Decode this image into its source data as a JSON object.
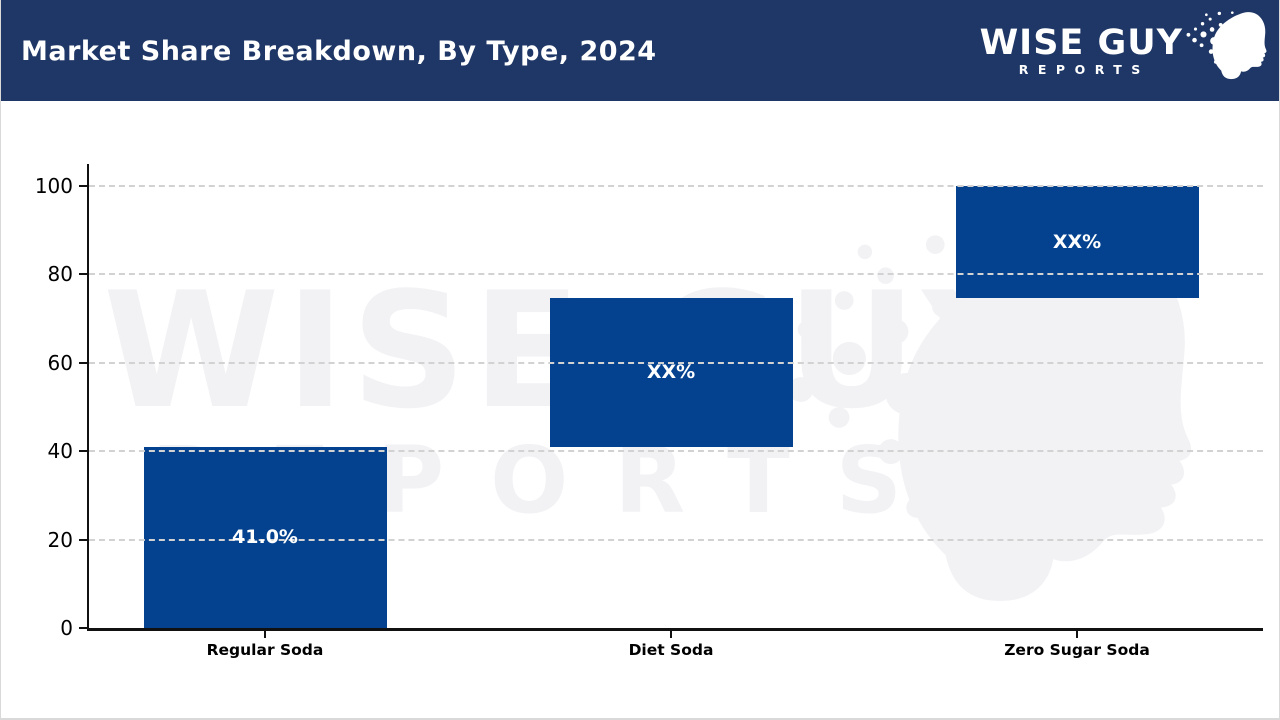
{
  "header": {
    "title": "Market Share Breakdown, By Type, 2024",
    "logo": {
      "wordmark": "WISE GUY",
      "subtext": "REPORTS"
    }
  },
  "watermark": {
    "wordmark": "WISE GUY",
    "subtext": "REPORTS"
  },
  "chart_data": {
    "type": "bar",
    "variant": "stacked-waterfall-segments",
    "title": "Market Share Breakdown, By Type, 2024",
    "categories": [
      "Regular Soda",
      "Diet Soda",
      "Zero Sugar Soda"
    ],
    "segments": [
      {
        "category": "Regular Soda",
        "start": 0,
        "end": 41.0,
        "label": "41.0%"
      },
      {
        "category": "Diet Soda",
        "start": 41.0,
        "end": 74.7,
        "label": "XX%"
      },
      {
        "category": "Zero Sugar Soda",
        "start": 74.7,
        "end": 100.0,
        "label": "XX%"
      }
    ],
    "ylim": [
      0,
      100
    ],
    "yticks": [
      0,
      20,
      40,
      60,
      80,
      100
    ],
    "xlabel": "",
    "ylabel": "",
    "legend": "none",
    "grid": "horizontal-dashed",
    "colors": {
      "bar": "#04428f",
      "bar_label": "#ffffff",
      "grid": "#d2d2d2",
      "axis": "#111111",
      "header_bg": "#1f3766",
      "watermark": "#f2f2f5"
    }
  }
}
